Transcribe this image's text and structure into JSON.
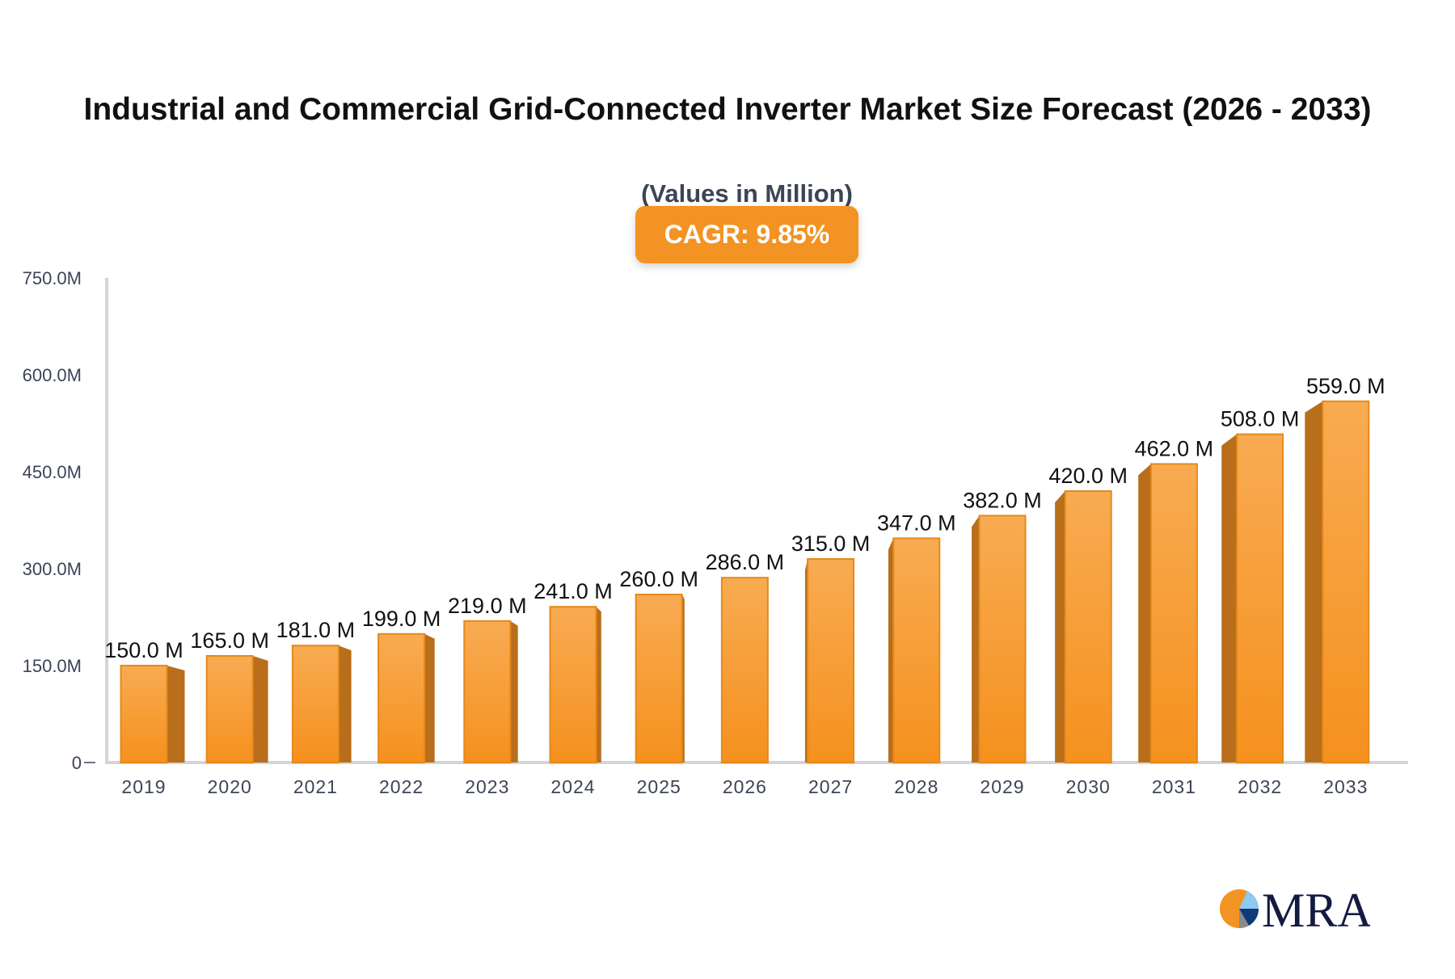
{
  "chart_data": {
    "type": "bar",
    "title": "Industrial and Commercial Grid-Connected Inverter Market Size Forecast (2026 - 2033)",
    "subtitle": "(Values in Million)",
    "annotation": "CAGR: 9.85%",
    "categories": [
      "2019",
      "2020",
      "2021",
      "2022",
      "2023",
      "2024",
      "2025",
      "2026",
      "2027",
      "2028",
      "2029",
      "2030",
      "2031",
      "2032",
      "2033"
    ],
    "values": [
      150.0,
      165.0,
      181.0,
      199.0,
      219.0,
      241.0,
      260.0,
      286.0,
      315.0,
      347.0,
      382.0,
      420.0,
      462.0,
      508.0,
      559.0
    ],
    "data_labels": [
      "150.0 M",
      "165.0 M",
      "181.0 M",
      "199.0 M",
      "219.0 M",
      "241.0 M",
      "260.0 M",
      "286.0 M",
      "315.0 M",
      "347.0 M",
      "382.0 M",
      "420.0 M",
      "462.0 M",
      "508.0 M",
      "559.0 M"
    ],
    "ylim": [
      0,
      750
    ],
    "yticks": [
      0,
      150,
      300,
      450,
      600,
      750
    ],
    "ytick_labels": [
      "0",
      "150.0M",
      "300.0M",
      "450.0M",
      "600.0M",
      "750.0M"
    ],
    "xlabel": "",
    "ylabel": "",
    "grid": false,
    "colors": {
      "bar_front_top": "#f8ab52",
      "bar_front_bottom": "#f5911e",
      "bar_side": "#b86e1a",
      "accent": "#f39323"
    }
  },
  "logo": {
    "text": "MRA"
  }
}
